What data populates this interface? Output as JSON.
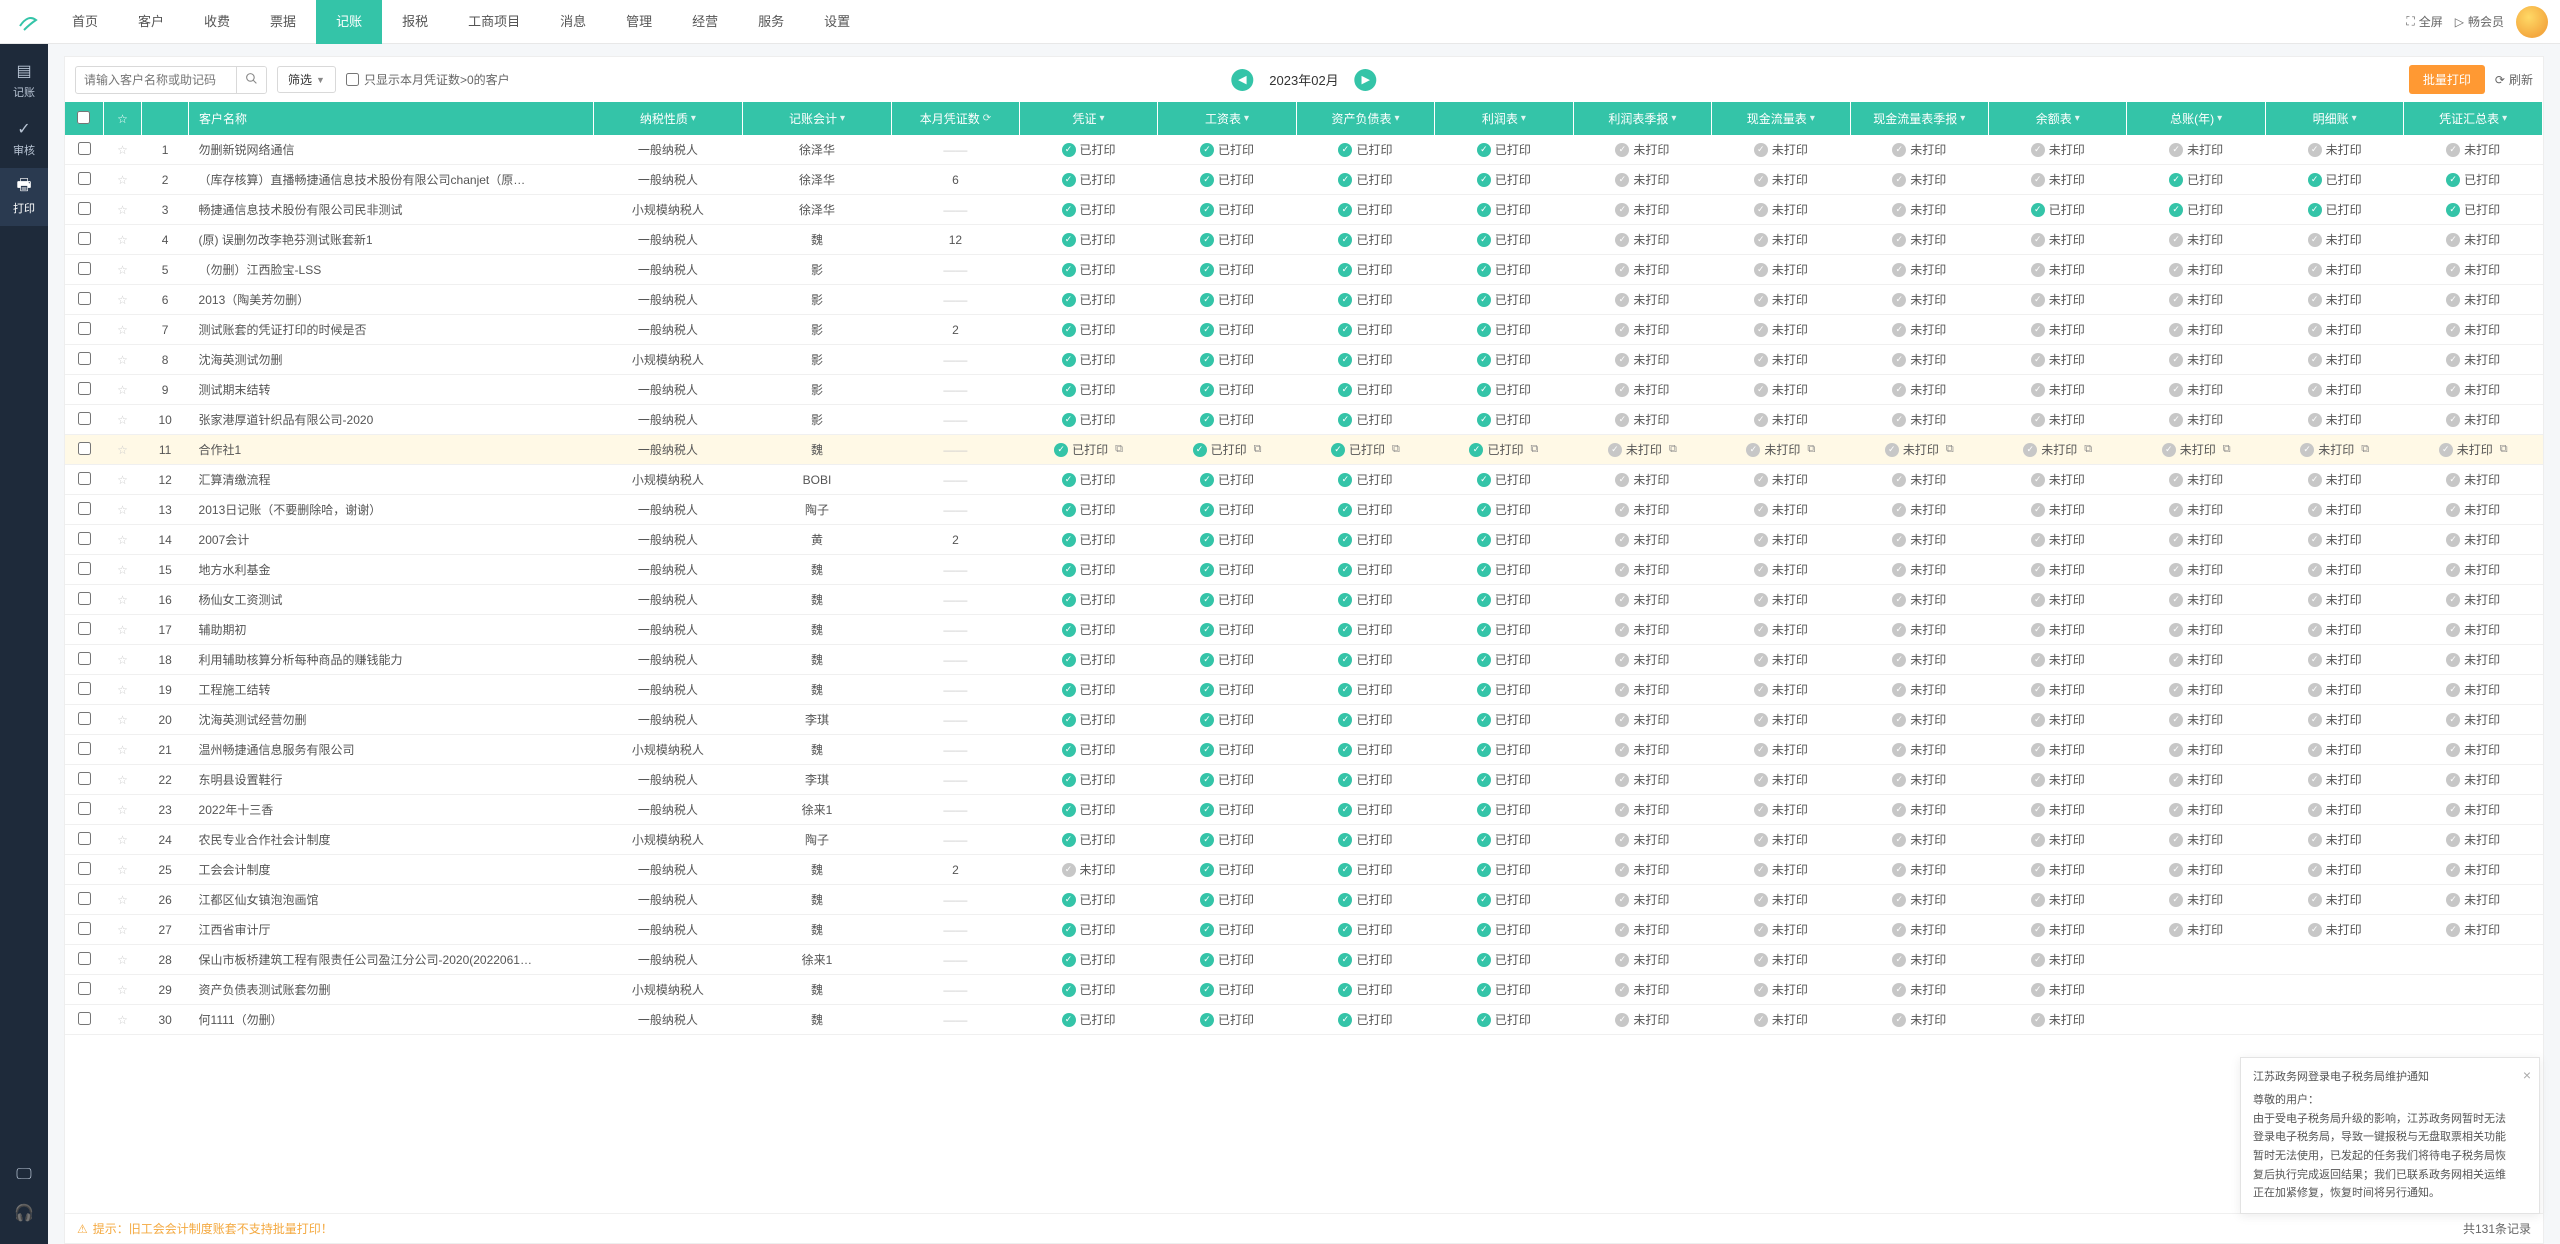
{
  "topnav": {
    "items": [
      "首页",
      "客户",
      "收费",
      "票据",
      "记账",
      "报税",
      "工商项目",
      "消息",
      "管理",
      "经营",
      "服务",
      "设置"
    ],
    "active_index": 4,
    "right": {
      "fullscreen": "全屏",
      "member": "畅会员"
    }
  },
  "sidebar": {
    "items": [
      {
        "icon": "list",
        "label": "记账"
      },
      {
        "icon": "check",
        "label": "审核"
      },
      {
        "icon": "print",
        "label": "打印"
      }
    ],
    "active_index": 2,
    "bottom": [
      {
        "icon": "monitor",
        "label": ""
      },
      {
        "icon": "headset",
        "label": ""
      }
    ]
  },
  "toolbar": {
    "search_placeholder": "请输入客户名称或助记码",
    "filter_label": "筛选",
    "only_with_vouchers_label": "只显示本月凭证数>0的客户",
    "period": "2023年02月",
    "batch_print": "批量打印",
    "refresh": "刷新"
  },
  "columns": [
    {
      "key": "chk",
      "label": "",
      "cls": "col-chk"
    },
    {
      "key": "star",
      "label": "",
      "cls": "col-star",
      "icon": "star"
    },
    {
      "key": "seq",
      "label": "",
      "cls": "col-seq"
    },
    {
      "key": "name",
      "label": "客户名称",
      "cls": "col-name"
    },
    {
      "key": "type",
      "label": "纳税性质",
      "cls": "col-type",
      "filter": true
    },
    {
      "key": "acct",
      "label": "记账会计",
      "cls": "col-acct",
      "filter": true
    },
    {
      "key": "cnt",
      "label": "本月凭证数",
      "cls": "col-cnt",
      "refresh": true
    },
    {
      "key": "c1",
      "label": "凭证",
      "cls": "col-stat",
      "filter": true
    },
    {
      "key": "c2",
      "label": "工资表",
      "cls": "col-stat",
      "filter": true
    },
    {
      "key": "c3",
      "label": "资产负债表",
      "cls": "col-stat",
      "filter": true
    },
    {
      "key": "c4",
      "label": "利润表",
      "cls": "col-stat",
      "filter": true
    },
    {
      "key": "c5",
      "label": "利润表季报",
      "cls": "col-stat",
      "filter": true
    },
    {
      "key": "c6",
      "label": "现金流量表",
      "cls": "col-stat",
      "filter": true
    },
    {
      "key": "c7",
      "label": "现金流量表季报",
      "cls": "col-stat",
      "filter": true
    },
    {
      "key": "c8",
      "label": "余额表",
      "cls": "col-stat",
      "filter": true
    },
    {
      "key": "c9",
      "label": "总账(年)",
      "cls": "col-stat",
      "filter": true
    },
    {
      "key": "c10",
      "label": "明细账",
      "cls": "col-stat",
      "filter": true
    },
    {
      "key": "c11",
      "label": "凭证汇总表",
      "cls": "col-stat",
      "filter": true
    }
  ],
  "status_labels": {
    "printed": "已打印",
    "not_printed": "未打印"
  },
  "colors": {
    "primary": "#34c4a8",
    "accent": "#ff9933",
    "sidebar_bg": "#1e2a3a",
    "hint": "#f4a940",
    "grey_dot": "#c7c7c7",
    "highlight_row": "#fff9e6"
  },
  "rows": [
    {
      "seq": 1,
      "name": "勿删新锐网络通信",
      "type": "一般纳税人",
      "acct": "徐泽华",
      "cnt": "",
      "st": [
        "p",
        "p",
        "p",
        "p",
        "n",
        "n",
        "n",
        "n",
        "n",
        "n",
        "n"
      ]
    },
    {
      "seq": 2,
      "name": "（库存核算）直播畅捷通信息技术股份有限公司chanjet（原…",
      "type": "一般纳税人",
      "acct": "徐泽华",
      "cnt": "6",
      "st": [
        "p",
        "p",
        "p",
        "p",
        "n",
        "n",
        "n",
        "n",
        "p",
        "p",
        "p"
      ]
    },
    {
      "seq": 3,
      "name": "畅捷通信息技术股份有限公司民非测试",
      "type": "小规模纳税人",
      "acct": "徐泽华",
      "cnt": "",
      "st": [
        "p",
        "p",
        "p",
        "p",
        "n",
        "n",
        "n",
        "p",
        "p",
        "p",
        "p"
      ]
    },
    {
      "seq": 4,
      "name": "(原) 误删勿改李艳芬测试账套新1",
      "type": "一般纳税人",
      "acct": "魏",
      "cnt": "12",
      "st": [
        "p",
        "p",
        "p",
        "p",
        "n",
        "n",
        "n",
        "n",
        "n",
        "n",
        "n"
      ]
    },
    {
      "seq": 5,
      "name": "（勿删）江西脸宝-LSS",
      "type": "一般纳税人",
      "acct": "影",
      "cnt": "",
      "st": [
        "p",
        "p",
        "p",
        "p",
        "n",
        "n",
        "n",
        "n",
        "n",
        "n",
        "n"
      ]
    },
    {
      "seq": 6,
      "name": "2013（陶美芳勿删）",
      "type": "一般纳税人",
      "acct": "影",
      "cnt": "",
      "st": [
        "p",
        "p",
        "p",
        "p",
        "n",
        "n",
        "n",
        "n",
        "n",
        "n",
        "n"
      ]
    },
    {
      "seq": 7,
      "name": "测试账套的凭证打印的时候是否",
      "type": "一般纳税人",
      "acct": "影",
      "cnt": "2",
      "st": [
        "p",
        "p",
        "p",
        "p",
        "n",
        "n",
        "n",
        "n",
        "n",
        "n",
        "n"
      ]
    },
    {
      "seq": 8,
      "name": "沈海英测试勿删",
      "type": "小规模纳税人",
      "acct": "影",
      "cnt": "",
      "st": [
        "p",
        "p",
        "p",
        "p",
        "n",
        "n",
        "n",
        "n",
        "n",
        "n",
        "n"
      ]
    },
    {
      "seq": 9,
      "name": "测试期末结转",
      "type": "一般纳税人",
      "acct": "影",
      "cnt": "",
      "st": [
        "p",
        "p",
        "p",
        "p",
        "n",
        "n",
        "n",
        "n",
        "n",
        "n",
        "n"
      ]
    },
    {
      "seq": 10,
      "name": "张家港厚道针织品有限公司-2020",
      "type": "一般纳税人",
      "acct": "影",
      "cnt": "",
      "st": [
        "p",
        "p",
        "p",
        "p",
        "n",
        "n",
        "n",
        "n",
        "n",
        "n",
        "n"
      ]
    },
    {
      "seq": 11,
      "name": "合作社1",
      "type": "一般纳税人",
      "acct": "魏",
      "cnt": "",
      "hl": true,
      "ext": true,
      "st": [
        "p",
        "p",
        "p",
        "p",
        "n",
        "n",
        "n",
        "n",
        "n",
        "n",
        "n"
      ]
    },
    {
      "seq": 12,
      "name": "汇算清缴流程",
      "type": "小规模纳税人",
      "acct": "BOBI",
      "cnt": "",
      "st": [
        "p",
        "p",
        "p",
        "p",
        "n",
        "n",
        "n",
        "n",
        "n",
        "n",
        "n"
      ]
    },
    {
      "seq": 13,
      "name": "2013日记账（不要删除哈，谢谢）",
      "type": "一般纳税人",
      "acct": "陶子",
      "cnt": "",
      "st": [
        "p",
        "p",
        "p",
        "p",
        "n",
        "n",
        "n",
        "n",
        "n",
        "n",
        "n"
      ]
    },
    {
      "seq": 14,
      "name": "2007会计",
      "type": "一般纳税人",
      "acct": "黄",
      "cnt": "2",
      "st": [
        "p",
        "p",
        "p",
        "p",
        "n",
        "n",
        "n",
        "n",
        "n",
        "n",
        "n"
      ]
    },
    {
      "seq": 15,
      "name": "地方水利基金",
      "type": "一般纳税人",
      "acct": "魏",
      "cnt": "",
      "st": [
        "p",
        "p",
        "p",
        "p",
        "n",
        "n",
        "n",
        "n",
        "n",
        "n",
        "n"
      ]
    },
    {
      "seq": 16,
      "name": "杨仙女工资测试",
      "type": "一般纳税人",
      "acct": "魏",
      "cnt": "",
      "st": [
        "p",
        "p",
        "p",
        "p",
        "n",
        "n",
        "n",
        "n",
        "n",
        "n",
        "n"
      ]
    },
    {
      "seq": 17,
      "name": "辅助期初",
      "type": "一般纳税人",
      "acct": "魏",
      "cnt": "",
      "st": [
        "p",
        "p",
        "p",
        "p",
        "n",
        "n",
        "n",
        "n",
        "n",
        "n",
        "n"
      ]
    },
    {
      "seq": 18,
      "name": "利用辅助核算分析每种商品的赚钱能力",
      "type": "一般纳税人",
      "acct": "魏",
      "cnt": "",
      "st": [
        "p",
        "p",
        "p",
        "p",
        "n",
        "n",
        "n",
        "n",
        "n",
        "n",
        "n"
      ]
    },
    {
      "seq": 19,
      "name": "工程施工结转",
      "type": "一般纳税人",
      "acct": "魏",
      "cnt": "",
      "st": [
        "p",
        "p",
        "p",
        "p",
        "n",
        "n",
        "n",
        "n",
        "n",
        "n",
        "n"
      ]
    },
    {
      "seq": 20,
      "name": "沈海英测试经营勿删",
      "type": "一般纳税人",
      "acct": "李琪",
      "cnt": "",
      "st": [
        "p",
        "p",
        "p",
        "p",
        "n",
        "n",
        "n",
        "n",
        "n",
        "n",
        "n"
      ]
    },
    {
      "seq": 21,
      "name": "温州畅捷通信息服务有限公司",
      "type": "小规模纳税人",
      "acct": "魏",
      "cnt": "",
      "st": [
        "p",
        "p",
        "p",
        "p",
        "n",
        "n",
        "n",
        "n",
        "n",
        "n",
        "n"
      ]
    },
    {
      "seq": 22,
      "name": "东明县设置鞋行",
      "type": "一般纳税人",
      "acct": "李琪",
      "cnt": "",
      "st": [
        "p",
        "p",
        "p",
        "p",
        "n",
        "n",
        "n",
        "n",
        "n",
        "n",
        "n"
      ]
    },
    {
      "seq": 23,
      "name": "2022年十三香",
      "type": "一般纳税人",
      "acct": "徐来1",
      "cnt": "",
      "st": [
        "p",
        "p",
        "p",
        "p",
        "n",
        "n",
        "n",
        "n",
        "n",
        "n",
        "n"
      ]
    },
    {
      "seq": 24,
      "name": "农民专业合作社会计制度",
      "type": "小规模纳税人",
      "acct": "陶子",
      "cnt": "",
      "st": [
        "p",
        "p",
        "p",
        "p",
        "n",
        "n",
        "n",
        "n",
        "n",
        "n",
        "n"
      ]
    },
    {
      "seq": 25,
      "name": "工会会计制度",
      "type": "一般纳税人",
      "acct": "魏",
      "cnt": "2",
      "st": [
        "n",
        "p",
        "p",
        "p",
        "n",
        "n",
        "n",
        "n",
        "n",
        "n",
        "n"
      ]
    },
    {
      "seq": 26,
      "name": "江都区仙女镇泡泡画馆",
      "type": "一般纳税人",
      "acct": "魏",
      "cnt": "",
      "st": [
        "p",
        "p",
        "p",
        "p",
        "n",
        "n",
        "n",
        "n",
        "n",
        "n",
        "n"
      ]
    },
    {
      "seq": 27,
      "name": "江西省审计厅",
      "type": "一般纳税人",
      "acct": "魏",
      "cnt": "",
      "st": [
        "p",
        "p",
        "p",
        "p",
        "n",
        "n",
        "n",
        "n",
        "n",
        "n",
        "n"
      ]
    },
    {
      "seq": 28,
      "name": "保山市板桥建筑工程有限责任公司盈江分公司-2020(2022061…",
      "type": "一般纳税人",
      "acct": "徐来1",
      "cnt": "",
      "st": [
        "p",
        "p",
        "p",
        "p",
        "n",
        "n",
        "n",
        "n",
        "",
        "",
        ""
      ]
    },
    {
      "seq": 29,
      "name": "资产负债表测试账套勿删",
      "type": "小规模纳税人",
      "acct": "魏",
      "cnt": "",
      "st": [
        "p",
        "p",
        "p",
        "p",
        "n",
        "n",
        "n",
        "n",
        "",
        "",
        ""
      ]
    },
    {
      "seq": 30,
      "name": "何1111（勿删）",
      "type": "一般纳税人",
      "acct": "魏",
      "cnt": "",
      "st": [
        "p",
        "p",
        "p",
        "p",
        "n",
        "n",
        "n",
        "n",
        "",
        "",
        ""
      ]
    }
  ],
  "footer": {
    "hint": "提示：旧工会会计制度账套不支持批量打印！",
    "count": "共131条记录"
  },
  "notice": {
    "title": "江苏政务网登录电子税务局维护通知",
    "body": "尊敬的用户：\n由于受电子税务局升级的影响，江苏政务网暂时无法登录电子税务局，导致一键报税与无盘取票相关功能暂时无法使用，已发起的任务我们将待电子税务局恢复后执行完成返回结果；我们已联系政务网相关运维正在加紧修复，恢复时间将另行通知。"
  }
}
